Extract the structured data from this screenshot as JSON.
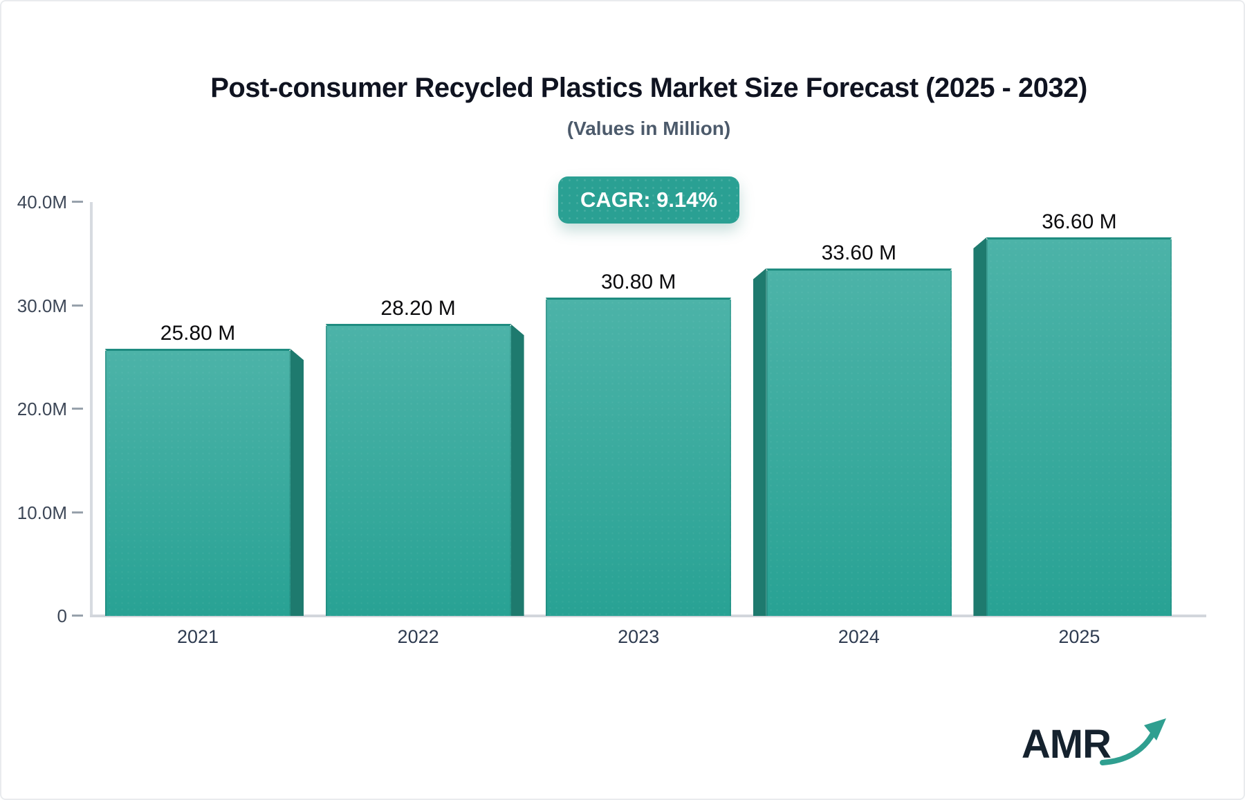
{
  "header": {
    "title": "Post-consumer Recycled Plastics Market Size Forecast (2025 - 2032)",
    "subtitle": "(Values in Million)",
    "cagr_badge": "CAGR: 9.14%"
  },
  "chart_data": {
    "type": "bar",
    "title": "Post-consumer Recycled Plastics Market Size Forecast (2025 - 2032)",
    "subtitle": "(Values in Million)",
    "annotation": "CAGR: 9.14%",
    "categories": [
      "2021",
      "2022",
      "2023",
      "2024",
      "2025"
    ],
    "values": [
      25.8,
      28.2,
      30.8,
      33.6,
      36.6
    ],
    "value_labels": [
      "25.80 M",
      "28.20 M",
      "30.80 M",
      "33.60 M",
      "36.60 M"
    ],
    "yticks": [
      {
        "label": "40.0M",
        "value": 40
      },
      {
        "label": "30.0M",
        "value": 30
      },
      {
        "label": "20.0M",
        "value": 20
      },
      {
        "label": "10.0M",
        "value": 10
      },
      {
        "label": "0",
        "value": 0
      }
    ],
    "ylim": [
      0,
      40
    ],
    "xlabel": "",
    "ylabel": "",
    "grid": false,
    "legend": "none",
    "colors": {
      "bar_top": "#4cb3a8",
      "bar_bottom": "#28a294",
      "bar_side": "#1e7a6e",
      "bar_edge": "#1f8c80",
      "badge_bg": "#2aa093",
      "axis_line": "#d7dbe0",
      "text_dark": "#0f1320"
    }
  },
  "logo": {
    "text": "AMR",
    "arrow_icon": "growth-arrow-icon",
    "text_color": "#15222e",
    "arrow_color": "#2f9f90"
  }
}
